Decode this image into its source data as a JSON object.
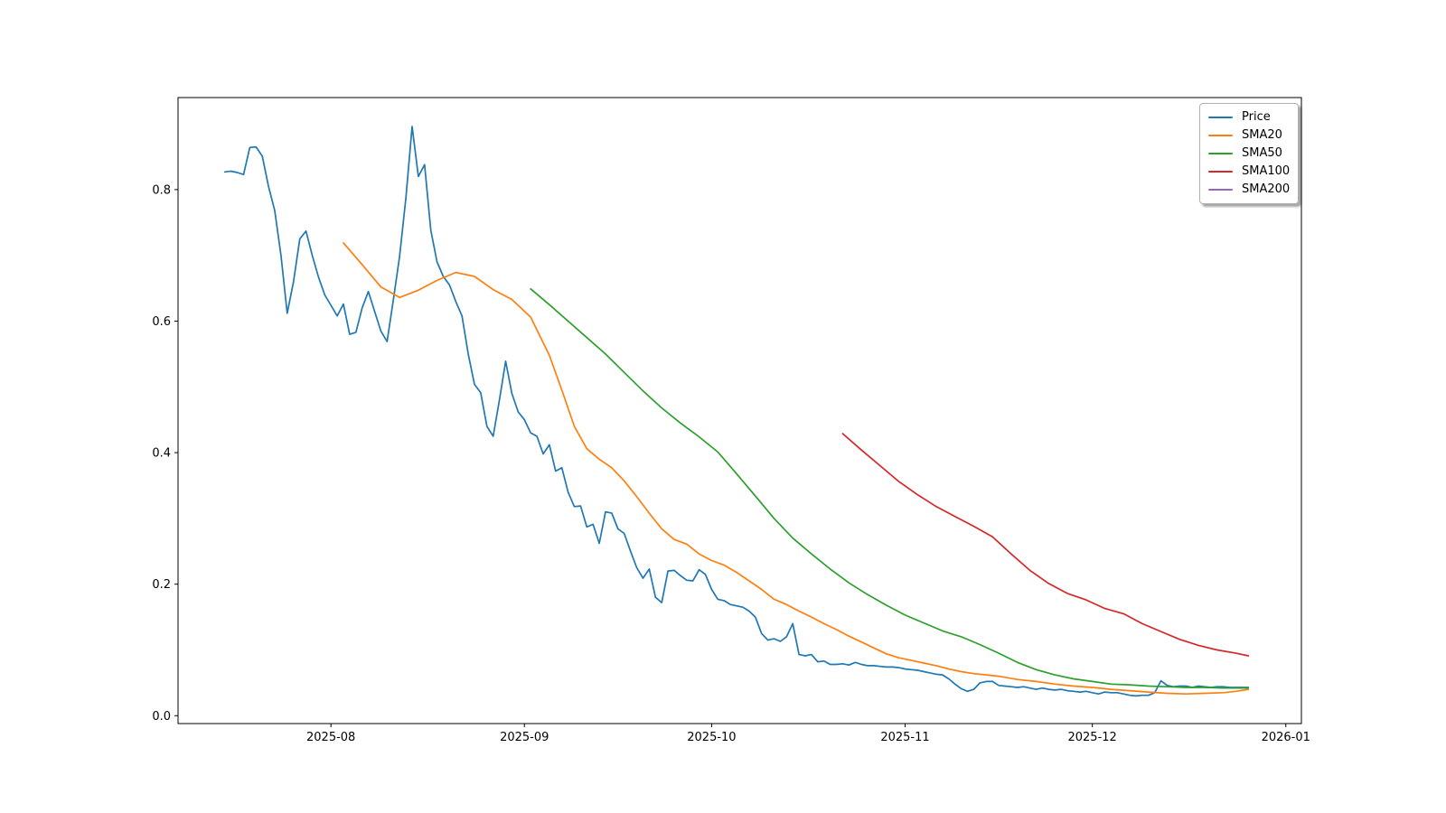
{
  "figure": {
    "background": "#ffffff",
    "text_color": "#000000",
    "spine_color": "#000000"
  },
  "legend": {
    "position": "upper right",
    "items": [
      {
        "label": "Price",
        "color": "#1f77b4"
      },
      {
        "label": "SMA20",
        "color": "#ff7f0e"
      },
      {
        "label": "SMA50",
        "color": "#2ca02c"
      },
      {
        "label": "SMA100",
        "color": "#d62728"
      },
      {
        "label": "SMA200",
        "color": "#9467bd"
      }
    ]
  },
  "chart_data": {
    "type": "line",
    "title": "",
    "xlabel": "",
    "ylabel": "",
    "grid": false,
    "legend_position": "upper right",
    "x_unit": "days, day 0 = first price sample (mid-July 2025)",
    "xlim": [
      -7.5,
      172.5
    ],
    "ylim": [
      -0.012,
      0.94
    ],
    "x_ticks": [
      {
        "label": "2025-08",
        "day": 17
      },
      {
        "label": "2025-09",
        "day": 48
      },
      {
        "label": "2025-10",
        "day": 78
      },
      {
        "label": "2025-11",
        "day": 109
      },
      {
        "label": "2025-12",
        "day": 139
      },
      {
        "label": "2026-01",
        "day": 170
      }
    ],
    "y_ticks": [
      {
        "label": "0.0",
        "value": 0.0
      },
      {
        "label": "0.2",
        "value": 0.2
      },
      {
        "label": "0.4",
        "value": 0.4
      },
      {
        "label": "0.6",
        "value": 0.6
      },
      {
        "label": "0.8",
        "value": 0.8
      }
    ],
    "series": [
      {
        "name": "Price",
        "color": "#1f77b4",
        "start_day": 0,
        "step": 1,
        "values": [
          0.827,
          0.828,
          0.826,
          0.823,
          0.864,
          0.865,
          0.851,
          0.805,
          0.768,
          0.7,
          0.612,
          0.66,
          0.725,
          0.737,
          0.7,
          0.667,
          0.64,
          0.624,
          0.608,
          0.626,
          0.58,
          0.583,
          0.62,
          0.645,
          0.615,
          0.585,
          0.569,
          0.632,
          0.698,
          0.787,
          0.896,
          0.82,
          0.838,
          0.738,
          0.69,
          0.668,
          0.655,
          0.63,
          0.608,
          0.55,
          0.504,
          0.491,
          0.44,
          0.425,
          0.48,
          0.539,
          0.49,
          0.462,
          0.45,
          0.43,
          0.425,
          0.398,
          0.412,
          0.372,
          0.377,
          0.34,
          0.318,
          0.319,
          0.287,
          0.291,
          0.262,
          0.31,
          0.308,
          0.284,
          0.277,
          0.25,
          0.225,
          0.209,
          0.223,
          0.18,
          0.172,
          0.22,
          0.221,
          0.213,
          0.206,
          0.205,
          0.222,
          0.215,
          0.192,
          0.177,
          0.175,
          0.169,
          0.167,
          0.165,
          0.159,
          0.15,
          0.125,
          0.115,
          0.117,
          0.113,
          0.12,
          0.14,
          0.093,
          0.091,
          0.093,
          0.082,
          0.083,
          0.078,
          0.078,
          0.079,
          0.077,
          0.081,
          0.078,
          0.076,
          0.076,
          0.075,
          0.074,
          0.074,
          0.073,
          0.071,
          0.07,
          0.069,
          0.067,
          0.065,
          0.063,
          0.062,
          0.056,
          0.048,
          0.041,
          0.037,
          0.04,
          0.05,
          0.052,
          0.052,
          0.046,
          0.045,
          0.044,
          0.043,
          0.044,
          0.042,
          0.04,
          0.042,
          0.04,
          0.039,
          0.04,
          0.038,
          0.037,
          0.036,
          0.037,
          0.035,
          0.033,
          0.036,
          0.035,
          0.035,
          0.033,
          0.031,
          0.03,
          0.031,
          0.031,
          0.035,
          0.053,
          0.046,
          0.044,
          0.045,
          0.045,
          0.043,
          0.045,
          0.044,
          0.043,
          0.044,
          0.044,
          0.043,
          0.043,
          0.043,
          0.043
        ]
      },
      {
        "name": "SMA20",
        "color": "#ff7f0e",
        "points": [
          [
            19,
            0.719
          ],
          [
            22,
            0.686
          ],
          [
            25,
            0.652
          ],
          [
            28,
            0.636
          ],
          [
            31,
            0.647
          ],
          [
            34,
            0.662
          ],
          [
            37,
            0.674
          ],
          [
            40,
            0.668
          ],
          [
            43,
            0.648
          ],
          [
            46,
            0.633
          ],
          [
            49,
            0.606
          ],
          [
            52,
            0.548
          ],
          [
            54,
            0.495
          ],
          [
            56,
            0.44
          ],
          [
            58,
            0.406
          ],
          [
            60,
            0.39
          ],
          [
            62,
            0.377
          ],
          [
            64,
            0.357
          ],
          [
            66,
            0.333
          ],
          [
            68,
            0.308
          ],
          [
            70,
            0.284
          ],
          [
            72,
            0.268
          ],
          [
            74,
            0.261
          ],
          [
            76,
            0.246
          ],
          [
            78,
            0.236
          ],
          [
            80,
            0.229
          ],
          [
            82,
            0.218
          ],
          [
            84,
            0.205
          ],
          [
            86,
            0.192
          ],
          [
            88,
            0.177
          ],
          [
            90,
            0.169
          ],
          [
            92,
            0.159
          ],
          [
            94,
            0.15
          ],
          [
            96,
            0.14
          ],
          [
            98,
            0.131
          ],
          [
            100,
            0.121
          ],
          [
            102,
            0.112
          ],
          [
            104,
            0.103
          ],
          [
            106,
            0.094
          ],
          [
            108,
            0.088
          ],
          [
            110,
            0.084
          ],
          [
            112,
            0.08
          ],
          [
            114,
            0.076
          ],
          [
            116,
            0.071
          ],
          [
            118,
            0.067
          ],
          [
            120,
            0.064
          ],
          [
            122,
            0.062
          ],
          [
            124,
            0.06
          ],
          [
            127,
            0.055
          ],
          [
            130,
            0.052
          ],
          [
            133,
            0.048
          ],
          [
            136,
            0.045
          ],
          [
            139,
            0.043
          ],
          [
            142,
            0.04
          ],
          [
            145,
            0.038
          ],
          [
            148,
            0.036
          ],
          [
            151,
            0.034
          ],
          [
            154,
            0.033
          ],
          [
            157,
            0.034
          ],
          [
            160,
            0.035
          ],
          [
            162,
            0.037
          ],
          [
            164,
            0.04
          ]
        ]
      },
      {
        "name": "SMA50",
        "color": "#2ca02c",
        "points": [
          [
            49,
            0.649
          ],
          [
            52,
            0.625
          ],
          [
            55,
            0.6
          ],
          [
            58,
            0.575
          ],
          [
            61,
            0.55
          ],
          [
            64,
            0.522
          ],
          [
            67,
            0.494
          ],
          [
            70,
            0.468
          ],
          [
            73,
            0.445
          ],
          [
            76,
            0.424
          ],
          [
            79,
            0.401
          ],
          [
            82,
            0.368
          ],
          [
            85,
            0.334
          ],
          [
            88,
            0.3
          ],
          [
            91,
            0.27
          ],
          [
            94,
            0.246
          ],
          [
            97,
            0.223
          ],
          [
            100,
            0.202
          ],
          [
            103,
            0.184
          ],
          [
            106,
            0.168
          ],
          [
            109,
            0.153
          ],
          [
            112,
            0.141
          ],
          [
            115,
            0.129
          ],
          [
            118,
            0.12
          ],
          [
            121,
            0.108
          ],
          [
            124,
            0.095
          ],
          [
            127,
            0.081
          ],
          [
            130,
            0.07
          ],
          [
            133,
            0.062
          ],
          [
            136,
            0.056
          ],
          [
            139,
            0.052
          ],
          [
            142,
            0.048
          ],
          [
            145,
            0.047
          ],
          [
            148,
            0.045
          ],
          [
            151,
            0.044
          ],
          [
            154,
            0.043
          ],
          [
            157,
            0.043
          ],
          [
            160,
            0.042
          ],
          [
            164,
            0.042
          ]
        ]
      },
      {
        "name": "SMA100",
        "color": "#d62728",
        "points": [
          [
            99,
            0.429
          ],
          [
            102,
            0.404
          ],
          [
            105,
            0.38
          ],
          [
            108,
            0.356
          ],
          [
            111,
            0.336
          ],
          [
            114,
            0.318
          ],
          [
            117,
            0.303
          ],
          [
            120,
            0.288
          ],
          [
            123,
            0.272
          ],
          [
            126,
            0.246
          ],
          [
            129,
            0.221
          ],
          [
            132,
            0.201
          ],
          [
            135,
            0.186
          ],
          [
            138,
            0.176
          ],
          [
            141,
            0.163
          ],
          [
            144,
            0.155
          ],
          [
            147,
            0.14
          ],
          [
            150,
            0.128
          ],
          [
            153,
            0.116
          ],
          [
            156,
            0.107
          ],
          [
            159,
            0.1
          ],
          [
            162,
            0.095
          ],
          [
            164,
            0.091
          ]
        ]
      },
      {
        "name": "SMA200",
        "color": "#9467bd",
        "points": []
      }
    ]
  }
}
